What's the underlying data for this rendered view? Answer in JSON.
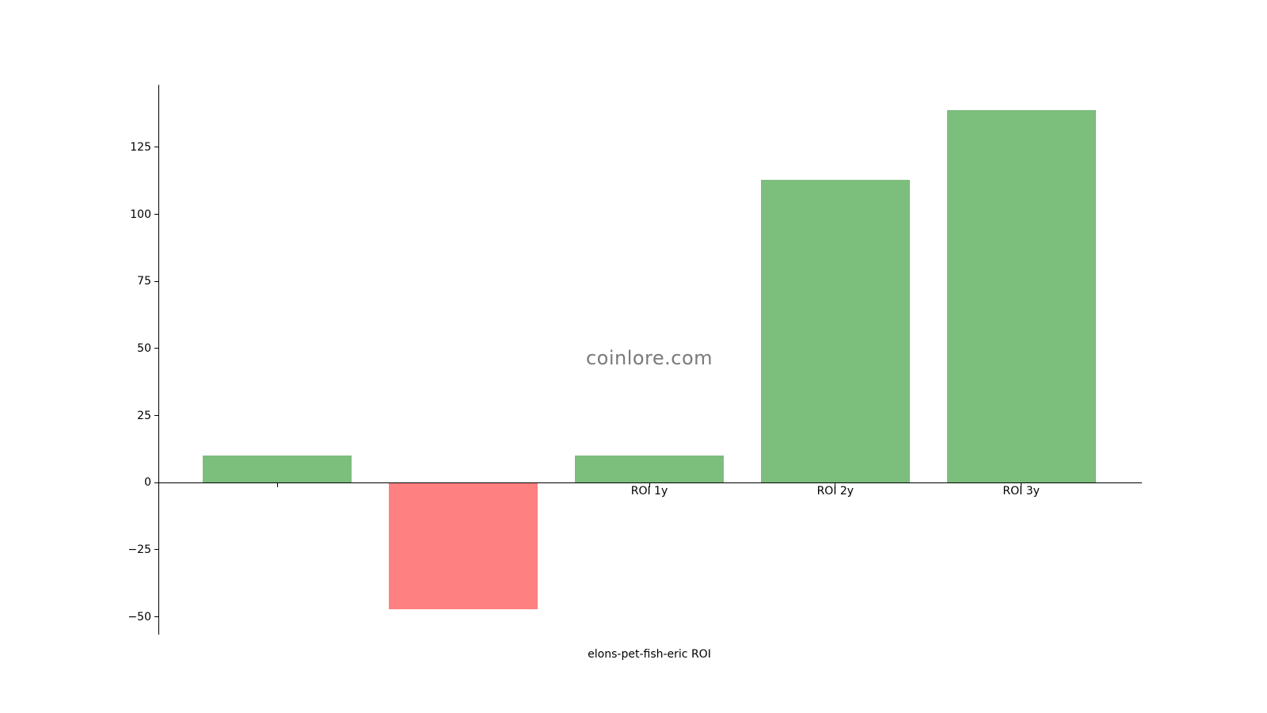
{
  "figure": {
    "background": "#ffffff",
    "axis_color": "#000000"
  },
  "watermark": {
    "text": "coinlore.com",
    "color": "#7a7a7a"
  },
  "chart_data": {
    "type": "bar",
    "title": "",
    "xlabel": "elons-pet-fish-eric ROI",
    "ylabel": "",
    "categories": [
      "",
      "",
      "ROI 1y",
      "ROI 2y",
      "ROI 3y"
    ],
    "values": [
      10,
      -47,
      10,
      113,
      139
    ],
    "positive_color": "#7cbe7c",
    "negative_color": "#ff8080",
    "yticks": [
      125,
      100,
      75,
      50,
      25,
      0,
      -25,
      -50
    ],
    "ytick_labels": [
      "125",
      "100",
      "75",
      "50",
      "25",
      "0",
      "−25",
      "−50"
    ],
    "ylim": [
      -56.3,
      148.3
    ],
    "xlim": [
      -0.64,
      4.64
    ],
    "bar_width": 0.8,
    "grid": false,
    "legend": null,
    "notes": "bars with empty category labels have no x tick text; tick of negative bar hidden behind bar"
  }
}
